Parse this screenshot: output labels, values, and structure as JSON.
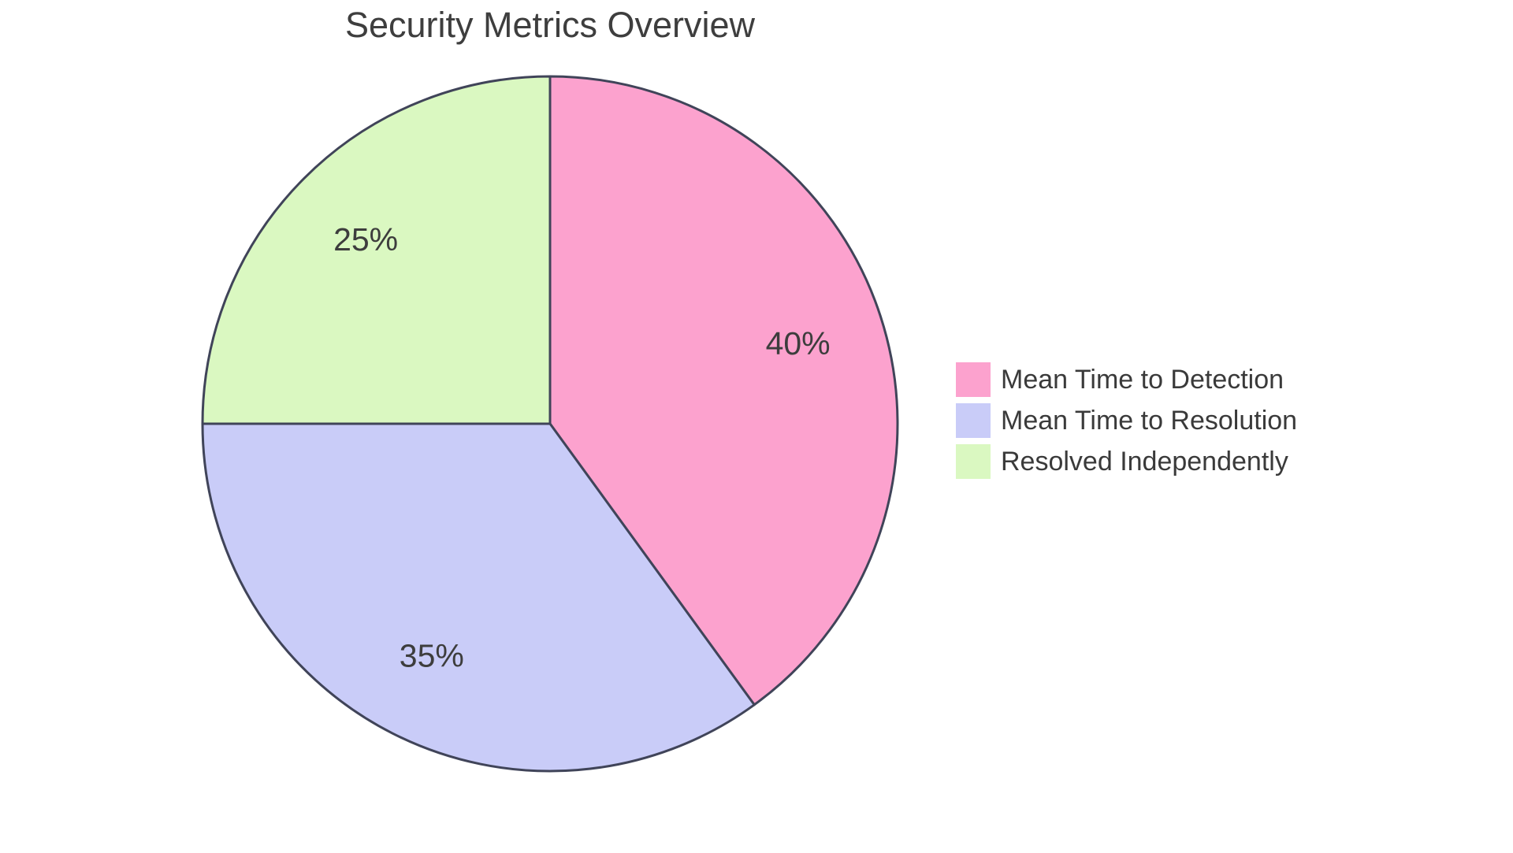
{
  "chart_data": {
    "type": "pie",
    "title": "Security Metrics Overview",
    "labels": [
      "Mean Time to Detection",
      "Mean Time to Resolution",
      "Resolved Independently"
    ],
    "values": [
      40,
      35,
      25
    ],
    "value_labels": [
      "40%",
      "35%",
      "25%"
    ],
    "colors": [
      "#FCA2CE",
      "#C9CCF8",
      "#DAF8C1"
    ],
    "slice_border_color": "#404459",
    "slice_border_width": 3,
    "start_angle": "top",
    "direction": "clockwise",
    "label_position": "inside",
    "legend_position": "right",
    "text_color": "#3d3d3d",
    "background_color": "#ffffff"
  }
}
